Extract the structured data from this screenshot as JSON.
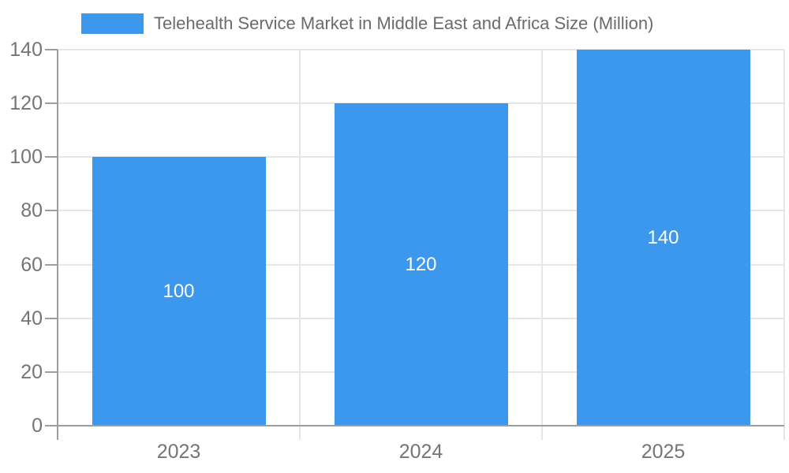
{
  "legend": {
    "label": "Telehealth Service Market in Middle East and Africa Size (Million)"
  },
  "chart_data": {
    "type": "bar",
    "title": "Telehealth Service Market in Middle East and Africa Size (Million)",
    "categories": [
      "2023",
      "2024",
      "2025"
    ],
    "values": [
      100,
      120,
      140
    ],
    "bar_data_labels": [
      "100",
      "120",
      "140"
    ],
    "xlabel": "",
    "ylabel": "",
    "ylim": [
      0,
      140
    ],
    "yticks": [
      0,
      20,
      40,
      60,
      80,
      100,
      120,
      140
    ],
    "grid": true,
    "legend_position": "top",
    "colors": {
      "bar": "#3b98ec",
      "bar_label": "#ffffff",
      "axis_text": "#757575",
      "legend_text": "#6b6b6b",
      "gridline": "#e6e6e6",
      "axis_line": "#9e9e9e"
    }
  }
}
